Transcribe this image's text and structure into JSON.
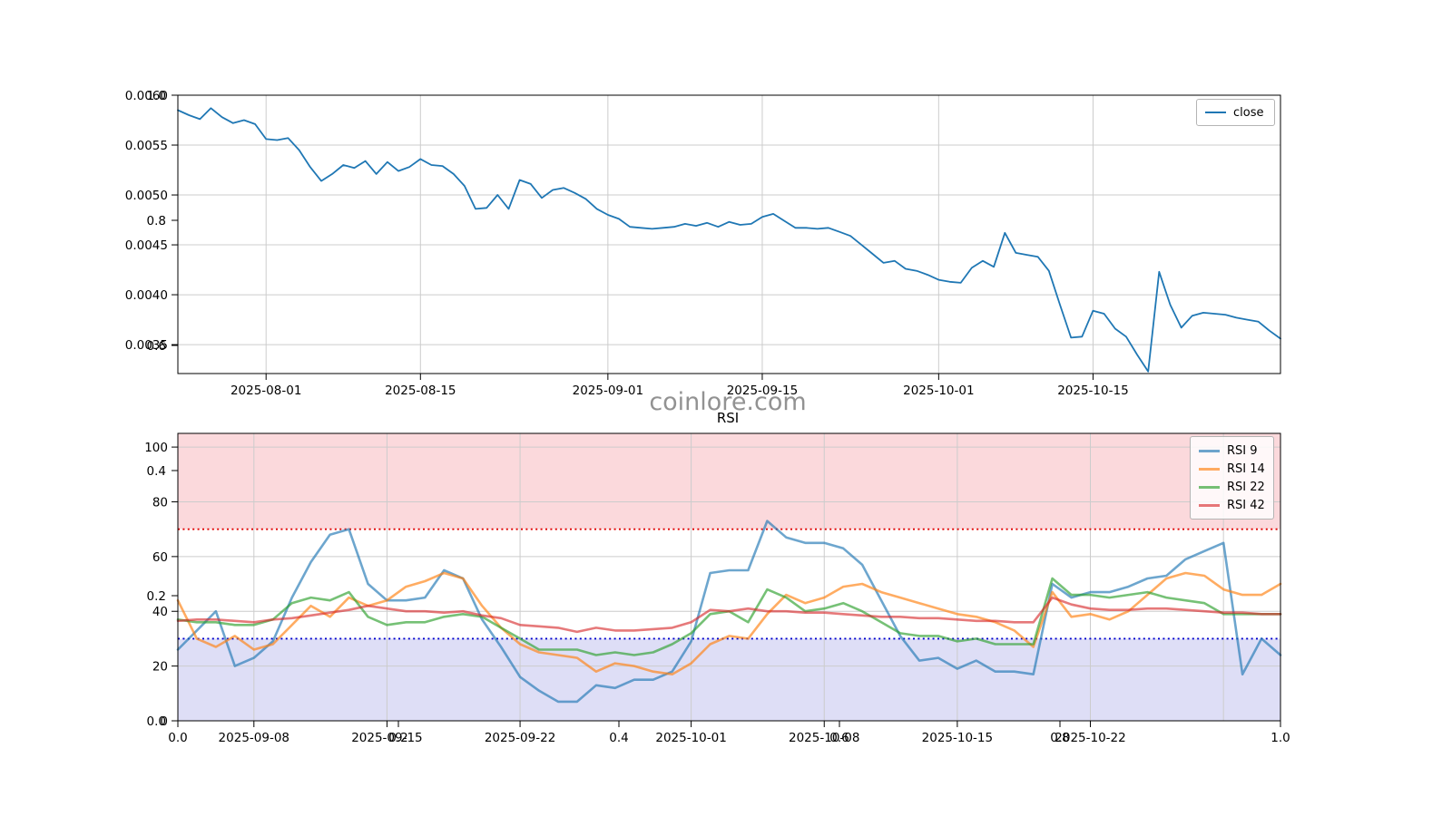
{
  "watermark": {
    "text": "coinlore.com",
    "color": "#929292"
  },
  "colors": {
    "close_line": "#1f77b4",
    "rsi9": "#1f77b4",
    "rsi14": "#ff7f0e",
    "rsi22": "#2ca02c",
    "rsi42": "#d62728",
    "overbought_band": "#fbd9dc",
    "oversold_band": "#dedef6",
    "overbought_line": "#e00000",
    "oversold_line": "#0000cc",
    "gridline": "#cccccc"
  },
  "twin_axis": {
    "y_ticks": [
      "1.0",
      "0.8",
      "0.6",
      "0.4",
      "0.2",
      "0.0"
    ],
    "x_ticks": [
      "0.0",
      "0.2",
      "0.4",
      "0.6",
      "0.8",
      "1.0"
    ]
  },
  "chart_data": [
    {
      "type": "line",
      "title": "",
      "xlabel": "",
      "ylabel": "",
      "grid": true,
      "legend_position": "upper right",
      "ylim": [
        0.00321,
        0.006
      ],
      "y_ticks": [
        {
          "value": 0.0035,
          "label": "0.0035"
        },
        {
          "value": 0.004,
          "label": "0.0040"
        },
        {
          "value": 0.0045,
          "label": "0.0045"
        },
        {
          "value": 0.005,
          "label": "0.0050"
        },
        {
          "value": 0.0055,
          "label": "0.0055"
        },
        {
          "value": 0.006,
          "label": "0.0060"
        }
      ],
      "x_tick_labels": [
        {
          "index": 8,
          "label": "2025-08-01"
        },
        {
          "index": 22,
          "label": "2025-08-15"
        },
        {
          "index": 39,
          "label": "2025-09-01"
        },
        {
          "index": 53,
          "label": "2025-09-15"
        },
        {
          "index": 69,
          "label": "2025-10-01"
        },
        {
          "index": 83,
          "label": "2025-10-15"
        }
      ],
      "x_range": [
        "2025-07-24",
        "2025-11-01"
      ],
      "series": [
        {
          "name": "close",
          "color": "#1f77b4",
          "opacity": 1,
          "width": 1.8,
          "values": [
            0.00585,
            0.0058,
            0.00576,
            0.00587,
            0.00578,
            0.00572,
            0.00575,
            0.00571,
            0.00556,
            0.00555,
            0.00557,
            0.00545,
            0.00528,
            0.00514,
            0.00521,
            0.0053,
            0.00527,
            0.00534,
            0.00521,
            0.00533,
            0.00524,
            0.00528,
            0.00536,
            0.0053,
            0.00529,
            0.00521,
            0.00509,
            0.00486,
            0.00487,
            0.005,
            0.00486,
            0.00515,
            0.00511,
            0.00497,
            0.00505,
            0.00507,
            0.00502,
            0.00496,
            0.00486,
            0.0048,
            0.00476,
            0.00468,
            0.00467,
            0.00466,
            0.00467,
            0.00468,
            0.00471,
            0.00469,
            0.00472,
            0.00468,
            0.00473,
            0.0047,
            0.00471,
            0.00478,
            0.00481,
            0.00474,
            0.00467,
            0.00467,
            0.00466,
            0.00467,
            0.00463,
            0.00459,
            0.0045,
            0.00441,
            0.00432,
            0.00434,
            0.00426,
            0.00424,
            0.0042,
            0.00415,
            0.00413,
            0.00412,
            0.00427,
            0.00434,
            0.00428,
            0.00462,
            0.00442,
            0.0044,
            0.00438,
            0.00424,
            0.0039,
            0.00357,
            0.00358,
            0.00384,
            0.00381,
            0.00366,
            0.00358,
            0.0034,
            0.00323,
            0.00423,
            0.0039,
            0.00367,
            0.00379,
            0.00382,
            0.00381,
            0.0038,
            0.00377,
            0.00375,
            0.00373,
            0.00364,
            0.00356
          ]
        }
      ]
    },
    {
      "type": "line",
      "title": "RSI",
      "xlabel": "",
      "ylabel": "",
      "grid": true,
      "legend_position": "upper right",
      "ylim": [
        0,
        100
      ],
      "overbought_level": 70,
      "oversold_level": 30,
      "bands": [
        {
          "name": "overbought-zone",
          "from": 70,
          "to": 105,
          "color": "#fbd9dc"
        },
        {
          "name": "oversold-zone",
          "from": 0,
          "to": 30,
          "color": "#dedef6"
        }
      ],
      "hlines": [
        {
          "value": 70,
          "color": "#e00000",
          "style": "dotted"
        },
        {
          "value": 30,
          "color": "#0000cc",
          "style": "dotted"
        }
      ],
      "y_ticks": [
        {
          "value": 0,
          "label": "0"
        },
        {
          "value": 20,
          "label": "20"
        },
        {
          "value": 40,
          "label": "40"
        },
        {
          "value": 60,
          "label": "60"
        },
        {
          "value": 80,
          "label": "80"
        },
        {
          "value": 100,
          "label": "100"
        }
      ],
      "x_tick_labels": [
        {
          "index": 4,
          "label": "2025-09-08"
        },
        {
          "index": 11,
          "label": "2025-09-15"
        },
        {
          "index": 18,
          "label": "2025-09-22"
        },
        {
          "index": 27,
          "label": "2025-10-01"
        },
        {
          "index": 34,
          "label": "2025-10-08"
        },
        {
          "index": 41,
          "label": "2025-10-15"
        },
        {
          "index": 48,
          "label": "2025-10-22"
        },
        {
          "index": 55,
          "label": ""
        }
      ],
      "x_range": [
        "2025-09-04",
        "2025-11-01"
      ],
      "series": [
        {
          "name": "RSI 9",
          "color": "#1f77b4",
          "opacity": 0.65,
          "width": 2.6,
          "values": [
            26,
            33,
            40,
            20,
            23,
            29,
            45,
            58,
            68,
            70,
            50,
            44,
            44,
            45,
            55,
            52,
            37,
            27,
            16,
            11,
            7,
            7,
            13,
            12,
            15,
            15,
            18,
            29,
            54,
            55,
            55,
            73,
            67,
            65,
            65,
            63,
            57,
            44,
            31,
            22,
            23,
            19,
            22,
            18,
            18,
            17,
            50,
            45,
            47,
            47,
            49,
            52,
            53,
            59,
            62,
            65,
            17,
            30,
            24
          ]
        },
        {
          "name": "RSI 14",
          "color": "#ff7f0e",
          "opacity": 0.65,
          "width": 2.6,
          "values": [
            44,
            30,
            27,
            31,
            26,
            28,
            35,
            42,
            38,
            45,
            42,
            44,
            49,
            51,
            54,
            52,
            42,
            34,
            28,
            25,
            24,
            23,
            18,
            21,
            20,
            18,
            17,
            21,
            28,
            31,
            30,
            39,
            46,
            43,
            45,
            49,
            50,
            47,
            45,
            43,
            41,
            39,
            38,
            36,
            33,
            27,
            47,
            38,
            39,
            37,
            40,
            46,
            52,
            54,
            53,
            48,
            46,
            46,
            50
          ]
        },
        {
          "name": "RSI 22",
          "color": "#2ca02c",
          "opacity": 0.65,
          "width": 2.6,
          "values": [
            37,
            36,
            36,
            35,
            35,
            37,
            43,
            45,
            44,
            47,
            38,
            35,
            36,
            36,
            38,
            39,
            38,
            34,
            30,
            26,
            26,
            26,
            24,
            25,
            24,
            25,
            28,
            32,
            39,
            40,
            36,
            48,
            45,
            40,
            41,
            43,
            40,
            36,
            32,
            31,
            31,
            29,
            30,
            28,
            28,
            28,
            52,
            46,
            46,
            45,
            46,
            47,
            45,
            44,
            43,
            39,
            39,
            39,
            39
          ]
        },
        {
          "name": "RSI 42",
          "color": "#d62728",
          "opacity": 0.62,
          "width": 2.6,
          "values": [
            36.5,
            37,
            37,
            36.5,
            36,
            37,
            37.5,
            38.5,
            39.5,
            40.5,
            42,
            41,
            40,
            40,
            39.5,
            40,
            38.5,
            37.5,
            35,
            34.5,
            34,
            32.5,
            34,
            33,
            33,
            33.5,
            34,
            36,
            40.5,
            40,
            41,
            40,
            40,
            39.5,
            39.5,
            39,
            38.5,
            38,
            38,
            37.5,
            37.5,
            37,
            36.5,
            36.5,
            36,
            36,
            45,
            42.5,
            41,
            40.5,
            40.5,
            41,
            41,
            40.5,
            40,
            39.5,
            39.5,
            39,
            39
          ]
        }
      ]
    }
  ]
}
